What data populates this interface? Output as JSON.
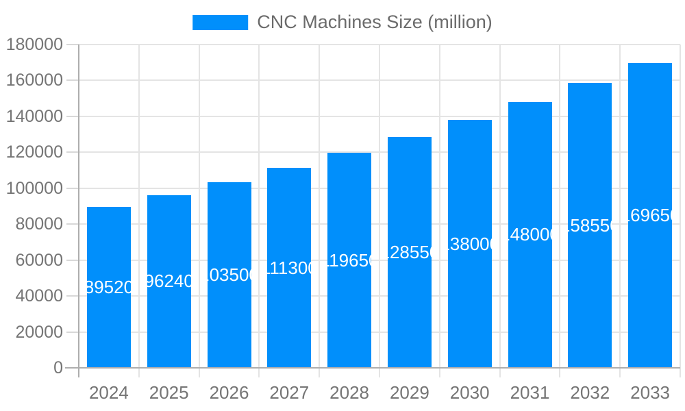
{
  "chart_data": {
    "type": "bar",
    "title": "CNC Machines Size (million)",
    "legend_position": "top-center",
    "categories": [
      "2024",
      "2025",
      "2026",
      "2027",
      "2028",
      "2029",
      "2030",
      "2031",
      "2032",
      "2033"
    ],
    "values": [
      89520,
      96240,
      103500,
      111300,
      119650,
      128550,
      138000,
      148000,
      158550,
      169650
    ],
    "value_labels": [
      "89520",
      "96240",
      "103500",
      "111300",
      "119650",
      "128550",
      "138000",
      "148000",
      "158550",
      "169650"
    ],
    "xlabel": "",
    "ylabel": "",
    "ylim": [
      0,
      180000
    ],
    "ytick_step": 20000,
    "ytick_labels": [
      "0",
      "20000",
      "40000",
      "60000",
      "80000",
      "100000",
      "120000",
      "140000",
      "160000",
      "180000"
    ],
    "grid": "both",
    "colors": {
      "bar": "#018ffb",
      "bar_value_text": "#ffffff",
      "legend_text": "#6b6b6b",
      "axis_text": "#757575",
      "gridline": "#e4e4e4",
      "axis_line": "#aeaeae",
      "background": "#ffffff"
    }
  }
}
